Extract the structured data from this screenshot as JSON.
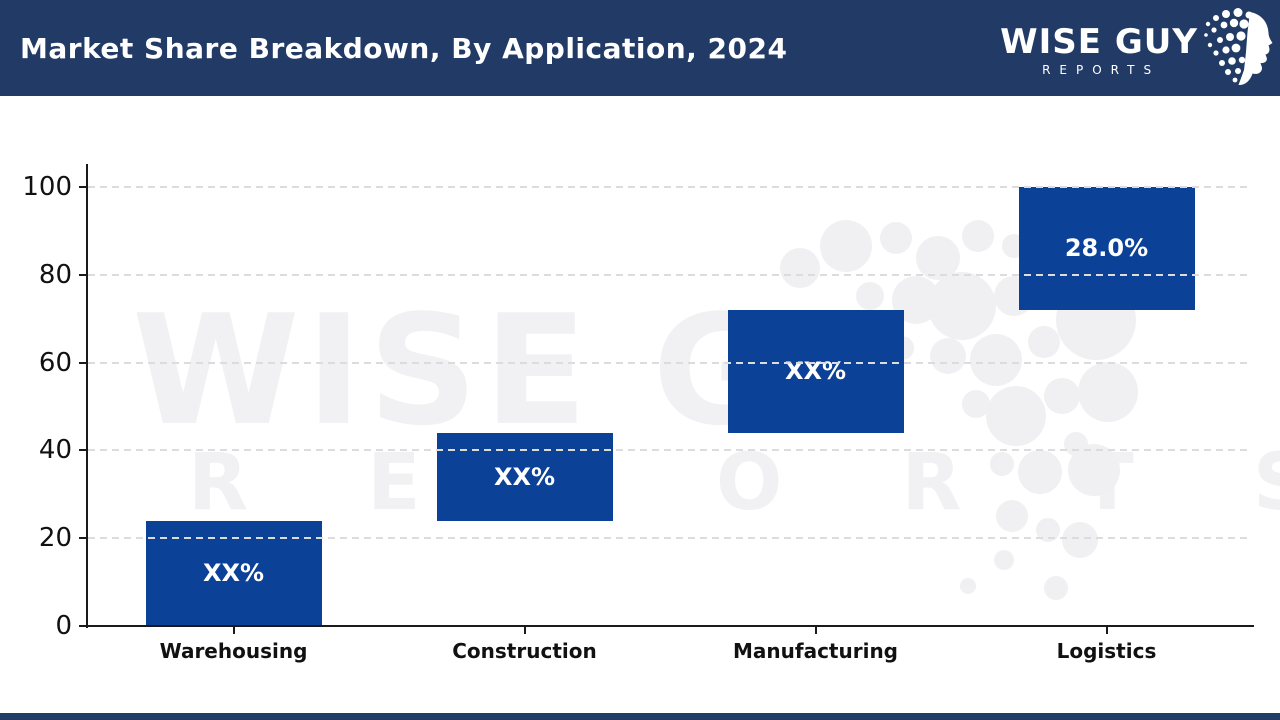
{
  "header": {
    "background": "#223A66",
    "text_color": "#ffffff",
    "logo": {
      "line1": "WISE GUY",
      "line2": "REPORTS",
      "face_icon": "dotted-face-profile"
    }
  },
  "watermark": {
    "line1": "WISE GU",
    "line2": "R E P O R T S"
  },
  "footer": {
    "background": "#223A66"
  },
  "chart_data": {
    "type": "bar",
    "subtype": "floating-waterfall",
    "title": "Market Share Breakdown, By Application, 2024",
    "categories": [
      "Warehousing",
      "Construction",
      "Manufacturing",
      "Logistics"
    ],
    "series": [
      {
        "name": "Market Share",
        "segments": [
          {
            "category": "Warehousing",
            "start": 0,
            "end": 24,
            "label": "XX%"
          },
          {
            "category": "Construction",
            "start": 24,
            "end": 44,
            "label": "XX%"
          },
          {
            "category": "Manufacturing",
            "start": 44,
            "end": 72,
            "label": "XX%"
          },
          {
            "category": "Logistics",
            "start": 72,
            "end": 100,
            "label": "28.0%"
          }
        ]
      }
    ],
    "xlabel": "",
    "ylabel": "",
    "yticks": [
      0,
      20,
      40,
      60,
      80,
      100
    ],
    "ylim": [
      0,
      105
    ],
    "grid": true,
    "grid_style": "dashed",
    "legend": null,
    "bar_color": "#0B4196",
    "bar_label_color": "#ffffff",
    "axis_color": "#1a1a1a",
    "gridline_color": "#dcdcdc",
    "background": "#ffffff"
  }
}
